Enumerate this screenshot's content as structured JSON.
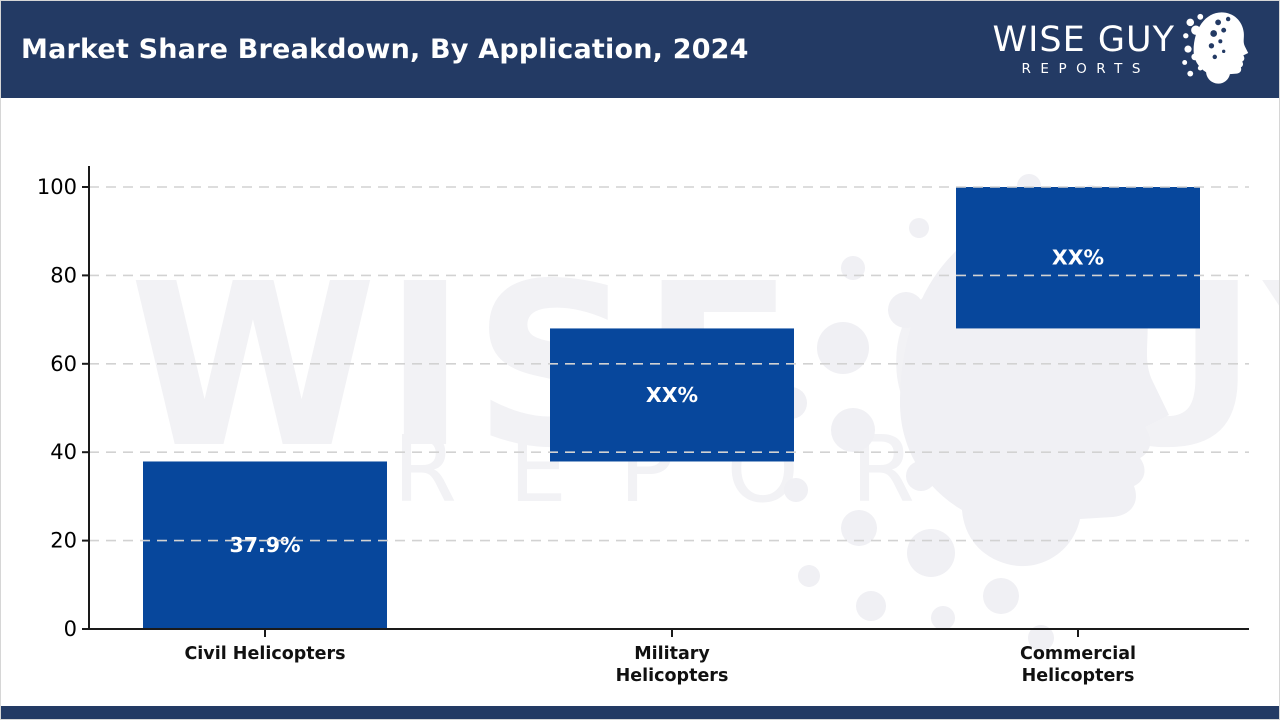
{
  "header": {
    "title": "Market Share Breakdown, By Application, 2024",
    "logo": {
      "brand": "WISE GUY",
      "subbrand": "REPORTS"
    }
  },
  "watermark": {
    "line1": "WISE GUY",
    "line2": "REPORTS"
  },
  "chart_data": {
    "type": "bar",
    "subtype": "floating-waterfall-segments",
    "title": "Market Share Breakdown, By Application, 2024",
    "categories": [
      "Civil Helicopters",
      "Military Helicopters",
      "Commercial Helicopters"
    ],
    "category_lines": [
      [
        "Civil Helicopters"
      ],
      [
        "Military",
        "Helicopters"
      ],
      [
        "Commercial",
        "Helicopters"
      ]
    ],
    "bars": [
      {
        "category": "Civil Helicopters",
        "label": "37.9%",
        "start": 0,
        "end": 37.9
      },
      {
        "category": "Military Helicopters",
        "label": "XX%",
        "start": 37.9,
        "end": 68
      },
      {
        "category": "Commercial Helicopters",
        "label": "XX%",
        "start": 68,
        "end": 100
      }
    ],
    "values_note": "segment heights: 37.9, 30.1, 32 (middle and top values masked as XX% in image)",
    "yticks": [
      0,
      20,
      40,
      60,
      80,
      100
    ],
    "ylim": [
      0,
      105
    ],
    "xlabel": "",
    "ylabel": "",
    "grid": "horizontal dashed lines drawn over bars",
    "legend": "none",
    "bar_color": "#07479c",
    "axis_color": "#1a1a1a",
    "grid_color": "#d2d2d2",
    "bar_label_color": "#ffffff",
    "header_color": "#233a64"
  }
}
